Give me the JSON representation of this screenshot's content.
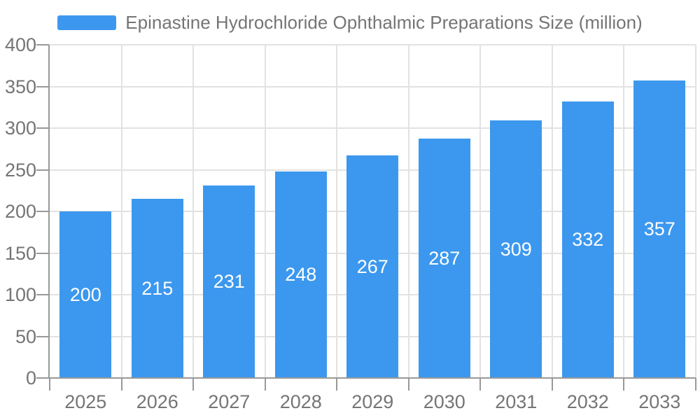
{
  "legend": {
    "label": "Epinastine Hydrochloride Ophthalmic Preparations Size (million)"
  },
  "colors": {
    "bar": "#3C98EE",
    "grid_line": "#E2E2E2",
    "axis_line": "#999999",
    "axis_label_text": "#757575",
    "legend_text": "#757575",
    "bar_label_text": "#FFFFFF",
    "background": "#FFFFFF"
  },
  "chart_data": {
    "type": "bar",
    "title": "",
    "categories": [
      "2025",
      "2026",
      "2027",
      "2028",
      "2029",
      "2030",
      "2031",
      "2032",
      "2033"
    ],
    "values": [
      200,
      215,
      231,
      248,
      267,
      287,
      309,
      332,
      357
    ],
    "series_name": "Epinastine Hydrochloride Ophthalmic Preparations Size (million)",
    "xlabel": "",
    "ylabel": "",
    "ylim": [
      0,
      400
    ],
    "yticks": [
      0,
      50,
      100,
      150,
      200,
      250,
      300,
      350,
      400
    ],
    "grid": true,
    "legend_position": "top-center",
    "bar_value_labels": true
  }
}
